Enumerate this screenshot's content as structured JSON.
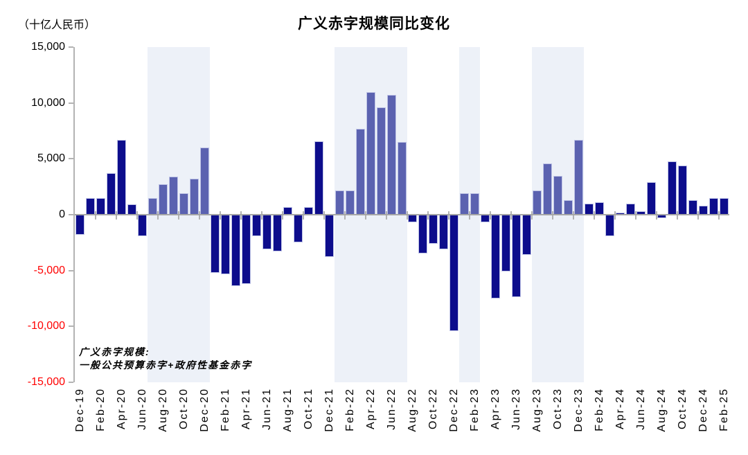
{
  "chart_data": {
    "type": "bar",
    "title": "广义赤字规模同比变化",
    "unit_label": "（十亿人民币）",
    "annotation": {
      "line1": "广义赤字规模:",
      "line2": "一般公共预算赤字+政府性基金赤字"
    },
    "ylim": [
      -15000,
      15000
    ],
    "ytick_step": 5000,
    "ytick_labels": [
      "15,000",
      "10,000",
      "5,000",
      "0",
      "-5,000",
      "-10,000",
      "-15,000"
    ],
    "ytick_values": [
      15000,
      10000,
      5000,
      0,
      -5000,
      -10000,
      -15000
    ],
    "grid": "off",
    "legend": "none",
    "x_label_every": 2,
    "categories": [
      "Dec-19",
      "Jan-20",
      "Feb-20",
      "Mar-20",
      "Apr-20",
      "May-20",
      "Jun-20",
      "Jul-20",
      "Aug-20",
      "Sep-20",
      "Oct-20",
      "Nov-20",
      "Dec-20",
      "Jan-21",
      "Feb-21",
      "Mar-21",
      "Apr-21",
      "May-21",
      "Jun-21",
      "Jul-21",
      "Aug-21",
      "Sep-21",
      "Oct-21",
      "Nov-21",
      "Dec-21",
      "Jan-22",
      "Feb-22",
      "Mar-22",
      "Apr-22",
      "May-22",
      "Jun-22",
      "Jul-22",
      "Aug-22",
      "Sep-22",
      "Oct-22",
      "Nov-22",
      "Dec-22",
      "Jan-23",
      "Feb-23",
      "Mar-23",
      "Apr-23",
      "May-23",
      "Jun-23",
      "Jul-23",
      "Aug-23",
      "Sep-23",
      "Oct-23",
      "Nov-23",
      "Dec-23",
      "Jan-24",
      "Feb-24",
      "Mar-24",
      "Apr-24",
      "May-24",
      "Jun-24",
      "Jul-24",
      "Aug-24",
      "Sep-24",
      "Oct-24",
      "Nov-24",
      "Dec-24",
      "Jan-25",
      "Feb-25"
    ],
    "values": [
      -1800,
      1500,
      1500,
      3700,
      6700,
      900,
      -1900,
      1500,
      2700,
      3400,
      1900,
      3200,
      6000,
      -5200,
      -5300,
      -6400,
      -6200,
      -1900,
      -3100,
      -3300,
      700,
      -2500,
      700,
      6600,
      -3800,
      2200,
      2200,
      7700,
      11000,
      9600,
      10700,
      6500,
      -700,
      -3500,
      -2600,
      -3100,
      -10400,
      1900,
      1900,
      -700,
      -7500,
      -5100,
      -7400,
      -3600,
      2200,
      4600,
      3500,
      1300,
      6700,
      1000,
      1100,
      -1900,
      200,
      1000,
      300,
      2900,
      -300,
      4800,
      4400,
      1300,
      800,
      1500,
      1500
    ],
    "shaded_index_ranges": [
      [
        7,
        12
      ],
      [
        25,
        31
      ],
      [
        37,
        38
      ],
      [
        44,
        48
      ]
    ],
    "colors": {
      "bar_dark": "#0d0d8c",
      "bar_light": "#5b62b0",
      "bar_outline": "#bfc4e6",
      "shaded_band": "#edf1f8",
      "axis": "#b3b3b3",
      "zero_line": "#a6a6a6",
      "ylabel_negative": "#ff0000",
      "text": "#000000"
    }
  }
}
